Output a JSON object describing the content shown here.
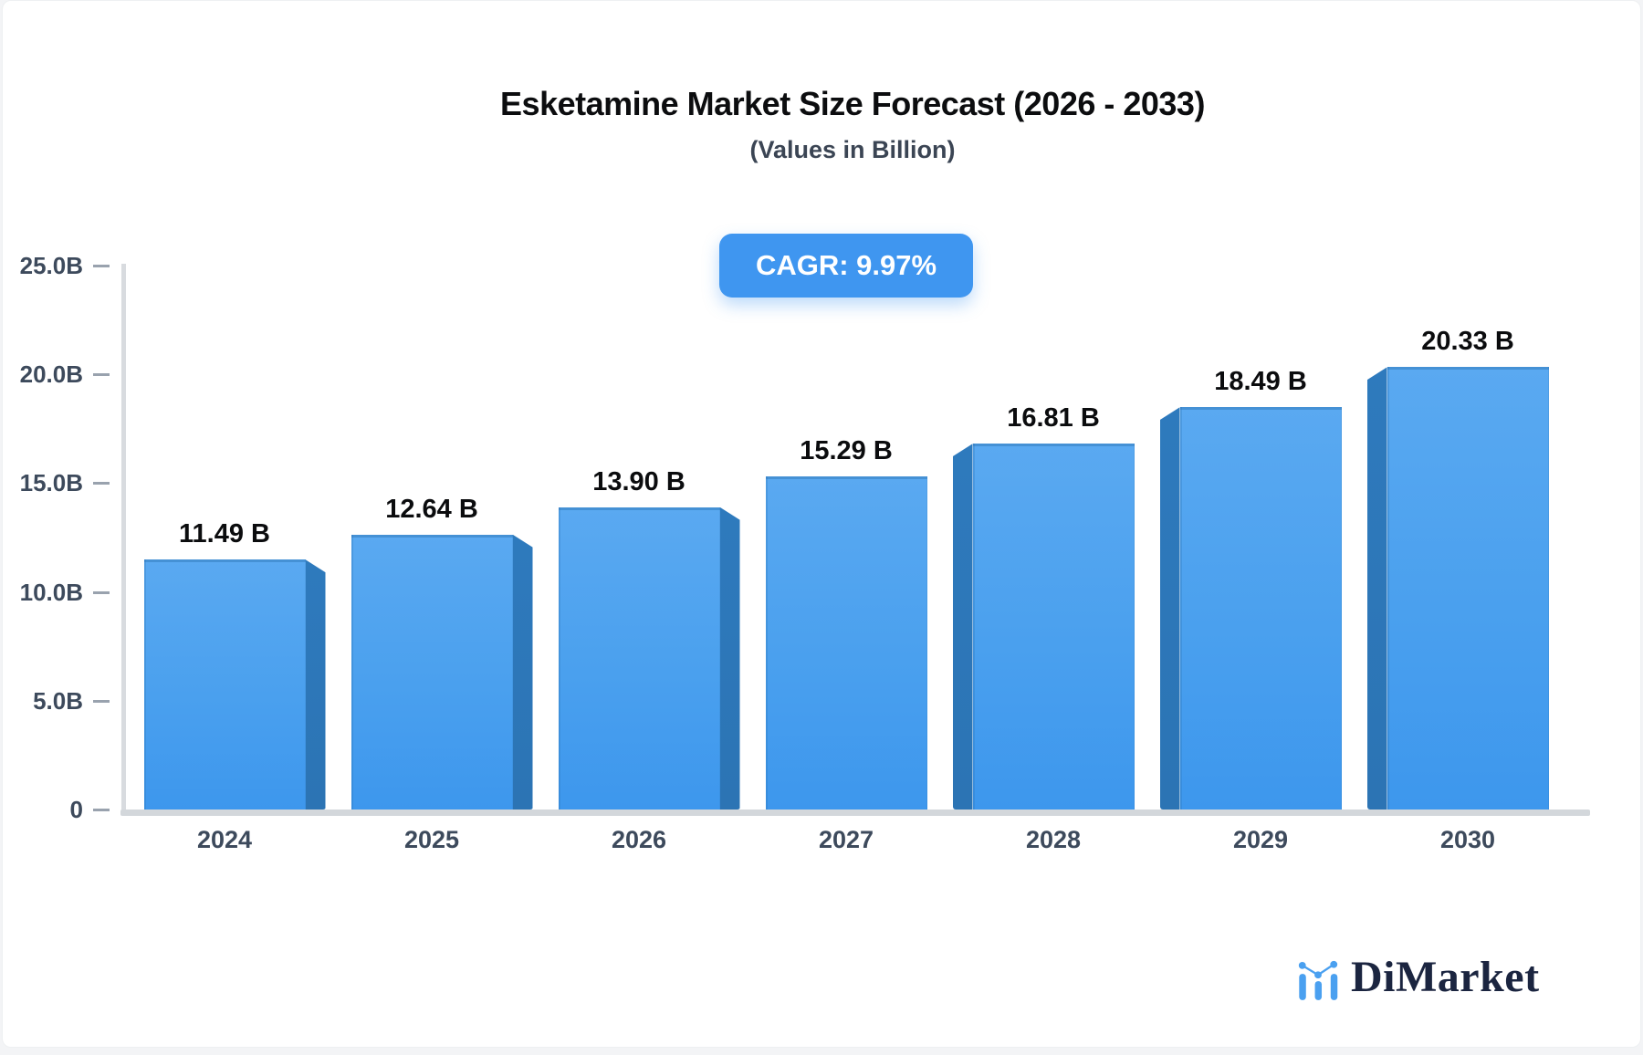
{
  "page": {
    "title": "Esketamine Market Size Forecast (2026 - 2033)",
    "subtitle": "(Values in Billion)"
  },
  "badge": {
    "label": "CAGR: 9.97%"
  },
  "brand": {
    "name": "DiMarket",
    "icon": "mini-bar-chart-logo"
  },
  "chart_data": {
    "type": "bar",
    "title": "Esketamine Market Size Forecast (2026 - 2033)",
    "subtitle": "(Values in Billion)",
    "cagr_label": "CAGR: 9.97%",
    "unit": "Billion",
    "categories": [
      "2024",
      "2025",
      "2026",
      "2027",
      "2028",
      "2029",
      "2030"
    ],
    "values": [
      11.49,
      12.64,
      13.9,
      15.29,
      16.81,
      18.49,
      20.33
    ],
    "value_labels": [
      "11.49 B",
      "12.64 B",
      "13.90 B",
      "15.29 B",
      "16.81 B",
      "18.49 B",
      "20.33 B"
    ],
    "ylim": [
      0,
      25
    ],
    "ytick_values": [
      25,
      20,
      15,
      10,
      5,
      0
    ],
    "ytick_labels": [
      "25.0B",
      "20.0B",
      "15.0B",
      "10.0B",
      "5.0B",
      "0"
    ],
    "grid": false,
    "legend": "none",
    "bar_style": "3d",
    "colors": {
      "bar_face_top": "#5aa9f1",
      "bar_face_bottom": "#3d97ed",
      "bar_side": "#2c74b4",
      "badge_bg": "#3f96f0",
      "axis_line": "#d8dbdf",
      "tick_text": "#3d4a5c",
      "value_text": "#0b0c0e",
      "brand_blue": "#4aa0f0",
      "brand_navy": "#1b2540"
    }
  }
}
